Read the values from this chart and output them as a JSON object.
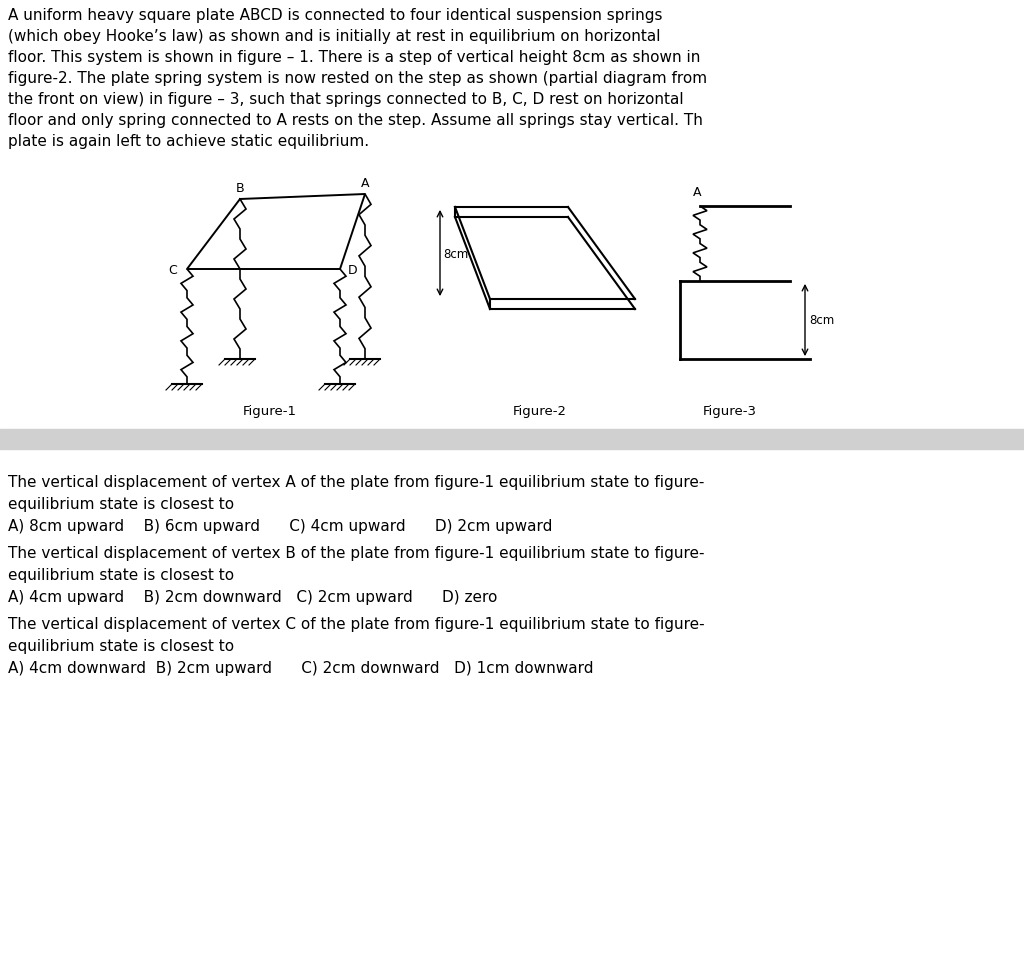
{
  "background_color": "#ffffff",
  "gray_band_color": "#d0d0d0",
  "problem_text_lines": [
    "A uniform heavy square plate ABCD is connected to four identical suspension springs",
    "(which obey Hooke’s law) as shown and is initially at rest in equilibrium on horizontal",
    "floor. This system is shown in figure – 1. There is a step of vertical height 8cm as shown in",
    "figure-2. The plate spring system is now rested on the step as shown (partial diagram from",
    "the front on view) in figure – 3, such that springs connected to B, C, D rest on horizontal",
    "floor and only spring connected to A rests on the step. Assume all springs stay vertical. Th",
    "plate is again left to achieve static equilibrium."
  ],
  "fig1_label": "Figure-1",
  "fig2_label": "Figure-2",
  "fig3_label": "Figure-3",
  "q1_line1": "The vertical displacement of vertex A of the plate from figure-1 equilibrium state to figure-",
  "q1_line2": "equilibrium state is closest to",
  "q1_opts": "A) 8cm upward    B) 6cm upward      C) 4cm upward      D) 2cm upward",
  "q2_line1": "The vertical displacement of vertex B of the plate from figure-1 equilibrium state to figure-",
  "q2_line2": "equilibrium state is closest to",
  "q2_opts": "A) 4cm upward    B) 2cm downward   C) 2cm upward      D) zero",
  "q3_line1": "The vertical displacement of vertex C of the plate from figure-1 equilibrium state to figure-",
  "q3_line2": "equilibrium state is closest to",
  "q3_opts": "A) 4cm downward  B) 2cm upward      C) 2cm downward   D) 1cm downward",
  "text_color": "#000000",
  "font_size_body": 11.0,
  "font_size_label": 9.5
}
